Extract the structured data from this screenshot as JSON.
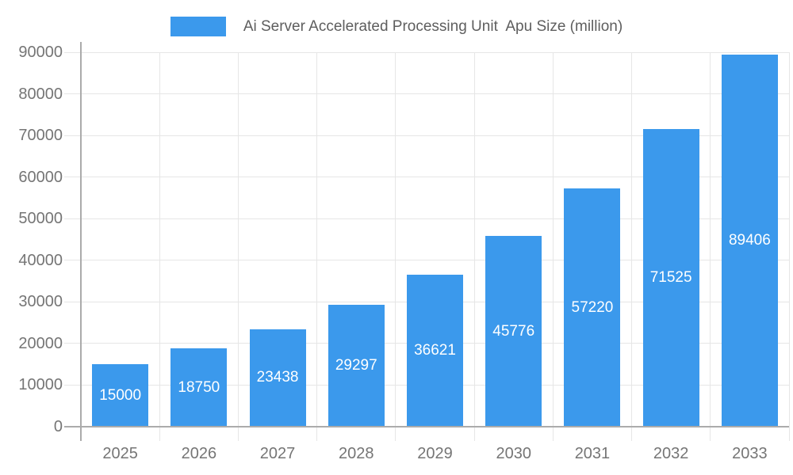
{
  "chart_data": {
    "type": "bar",
    "title": "",
    "legend_label": "Ai Server Accelerated Processing Unit  Apu Size (million)",
    "legend_position": "top",
    "categories": [
      "2025",
      "2026",
      "2027",
      "2028",
      "2029",
      "2030",
      "2031",
      "2032",
      "2033"
    ],
    "values": [
      15000,
      18750,
      23438,
      29297,
      36621,
      45776,
      57220,
      71525,
      89406
    ],
    "bar_value_labels": [
      "15000",
      "18750",
      "23438",
      "29297",
      "36621",
      "45776",
      "57220",
      "71525",
      "89406"
    ],
    "xlabel": "",
    "ylabel": "",
    "ylim": [
      0,
      90000
    ],
    "ytick_interval": 10000,
    "ytick_labels": [
      "0",
      "10000",
      "20000",
      "30000",
      "40000",
      "50000",
      "60000",
      "70000",
      "80000",
      "90000"
    ],
    "grid": "both",
    "colors": {
      "bar": "#3b99ec",
      "grid": "#e6e6e6",
      "axis": "#ababab",
      "axis_label": "#757575",
      "legend_text": "#5e5e5e",
      "bar_label": "#ffffff",
      "background": "#ffffff"
    }
  }
}
